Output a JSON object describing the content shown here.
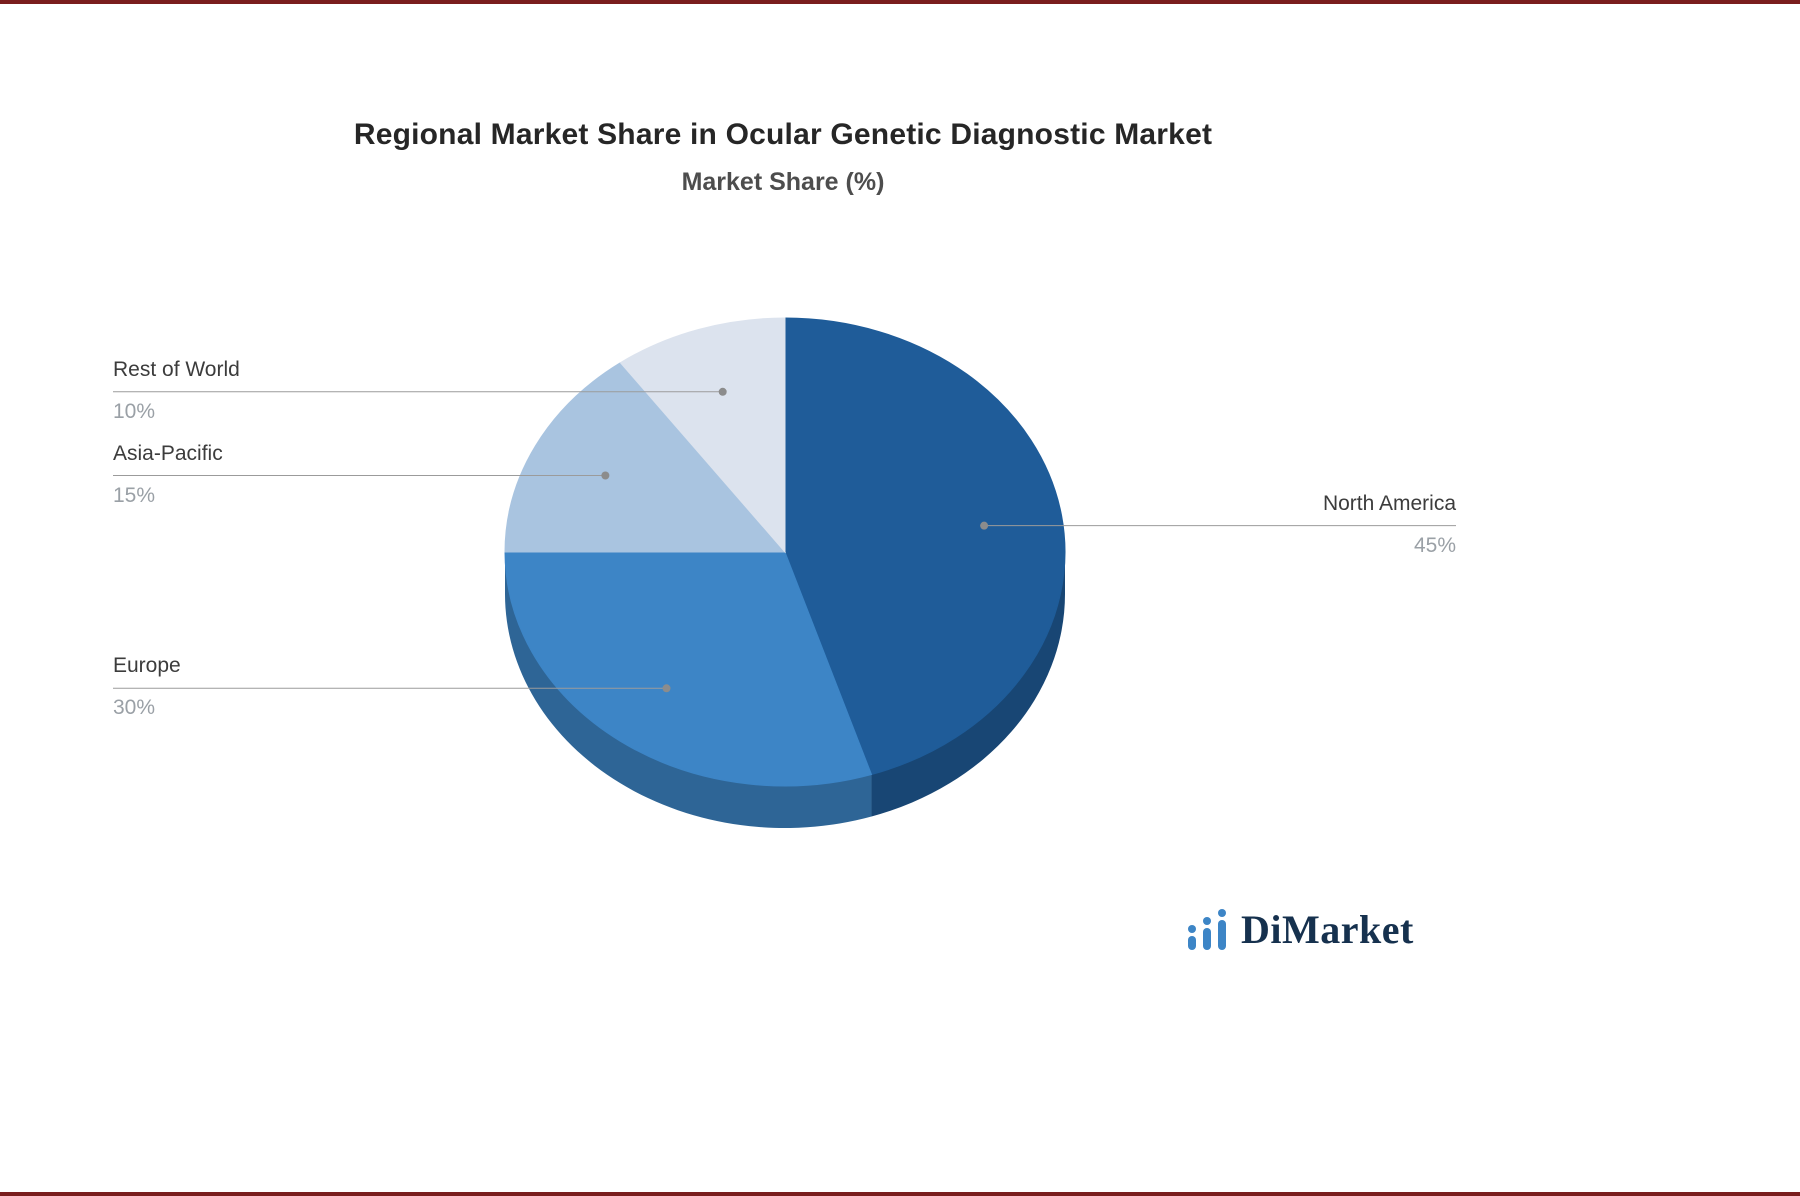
{
  "logo": {
    "text": "DiMarket"
  },
  "chart_data": {
    "type": "pie",
    "title": "Regional Market Share in Ocular Genetic Diagnostic Market",
    "subtitle": "Market Share (%)",
    "labels": [
      "North America",
      "Europe",
      "Asia-Pacific",
      "Rest of World"
    ],
    "values": [
      45,
      30,
      15,
      10
    ],
    "value_labels": [
      "45%",
      "30%",
      "15%",
      "10%"
    ],
    "colors": [
      "#1f5c99",
      "#3d85c6",
      "#a9c4e0",
      "#dce3ee"
    ],
    "style": "3d-pie",
    "start_angle_deg": -90,
    "direction": "clockwise",
    "legend_position": "none",
    "label_line_color": "#9b9b9b",
    "label_text_color": "#3c3c3c",
    "value_text_color": "#9aa0a6"
  }
}
